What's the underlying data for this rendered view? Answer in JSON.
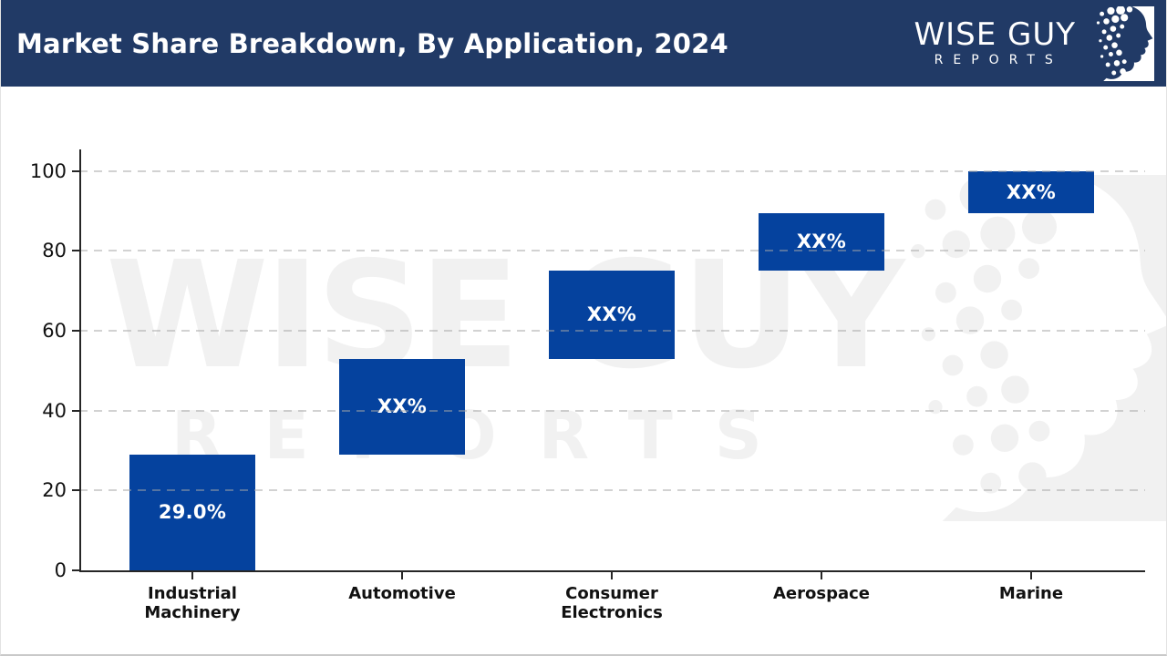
{
  "header": {
    "title": "Market Share Breakdown, By Application, 2024",
    "logo": {
      "line1": "WISE GUY",
      "line2": "REPORTS"
    }
  },
  "watermark": {
    "line1": "WISE GUY",
    "line2": "REPORTS"
  },
  "chart_data": {
    "type": "bar",
    "subtype": "waterfall",
    "title": "Market Share Breakdown, By Application, 2024",
    "categories": [
      "Industrial Machinery",
      "Automotive",
      "Consumer Electronics",
      "Aerospace",
      "Marine"
    ],
    "bars": [
      {
        "category": "Industrial Machinery",
        "label": "29.0%",
        "start": 0,
        "end": 29,
        "value": 29
      },
      {
        "category": "Automotive",
        "label": "XX%",
        "start": 29,
        "end": 53,
        "value": 24
      },
      {
        "category": "Consumer Electronics",
        "label": "XX%",
        "start": 53,
        "end": 75,
        "value": 22
      },
      {
        "category": "Aerospace",
        "label": "XX%",
        "start": 75,
        "end": 89.5,
        "value": 14.5
      },
      {
        "category": "Marine",
        "label": "XX%",
        "start": 89.5,
        "end": 100,
        "value": 10.5
      }
    ],
    "xlabel": "",
    "ylabel": "",
    "yticks": [
      0,
      20,
      40,
      60,
      80,
      100
    ],
    "ylim": [
      0,
      105
    ],
    "grid": "horizontal-dashed",
    "legend": "none",
    "bar_color": "#05429e",
    "bar_label_color": "#ffffff"
  },
  "colors": {
    "header_bg": "#213a66",
    "bar": "#05429e",
    "axis": "#262626",
    "gridline": "#e0e0e0",
    "watermark": "#f1f1f1",
    "title_text": "#ffffff",
    "tick_text": "#111111"
  }
}
